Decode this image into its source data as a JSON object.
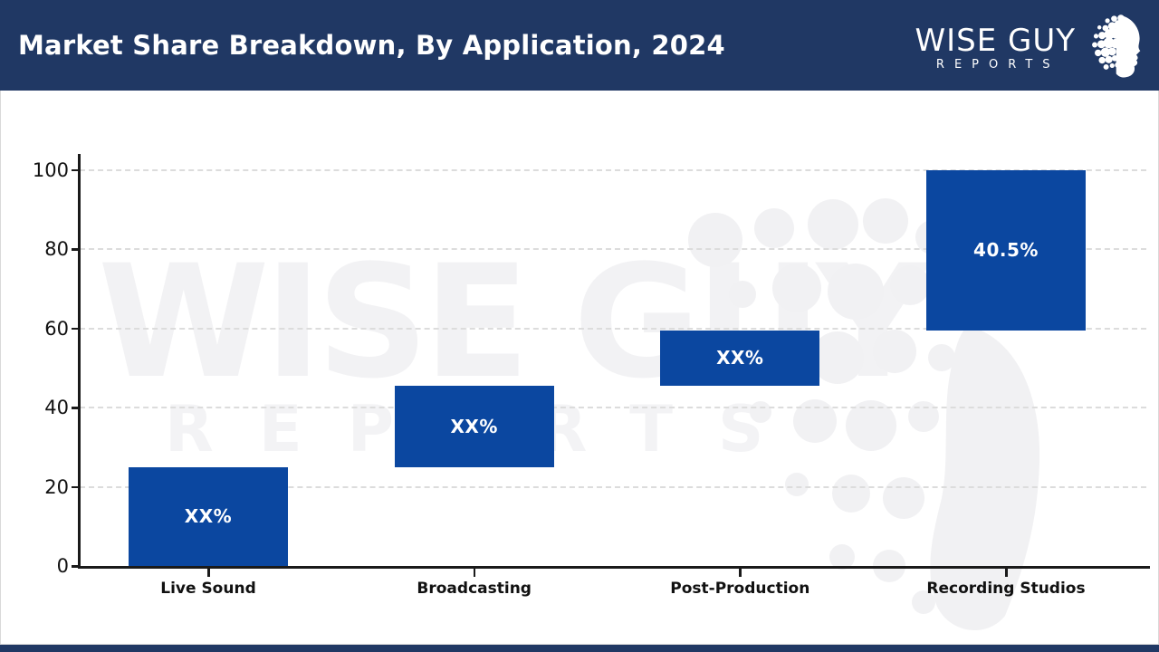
{
  "header": {
    "title": "Market Share Breakdown, By Application, 2024",
    "bg_color": "#203864",
    "logo": {
      "line1": "WISE GUY",
      "line2": "REPORTS"
    }
  },
  "watermark": {
    "line1": "WISE GUY",
    "line2": "REPORTS"
  },
  "chart_data": {
    "type": "bar",
    "subtype": "waterfall",
    "title": "Market Share Breakdown, By Application, 2024",
    "categories": [
      "Live Sound",
      "Broadcasting",
      "Post-Production",
      "Recording Studios"
    ],
    "segments": [
      {
        "category": "Live Sound",
        "start": 0,
        "end": 25,
        "label": "XX%"
      },
      {
        "category": "Broadcasting",
        "start": 25,
        "end": 45.5,
        "label": "XX%"
      },
      {
        "category": "Post-Production",
        "start": 45.5,
        "end": 59.5,
        "label": "XX%"
      },
      {
        "category": "Recording Studios",
        "start": 59.5,
        "end": 100,
        "label": "40.5%"
      }
    ],
    "values": [
      25,
      20.5,
      14,
      40.5
    ],
    "yticks": [
      0,
      20,
      40,
      60,
      80,
      100
    ],
    "ylim": [
      0,
      100
    ],
    "xlabel": "",
    "ylabel": "",
    "grid": "horizontal-dashed",
    "legend": "none",
    "bar_color": "#0b47a0",
    "bar_label_color": "#ffffff",
    "axis_color": "#1a1a1a"
  }
}
